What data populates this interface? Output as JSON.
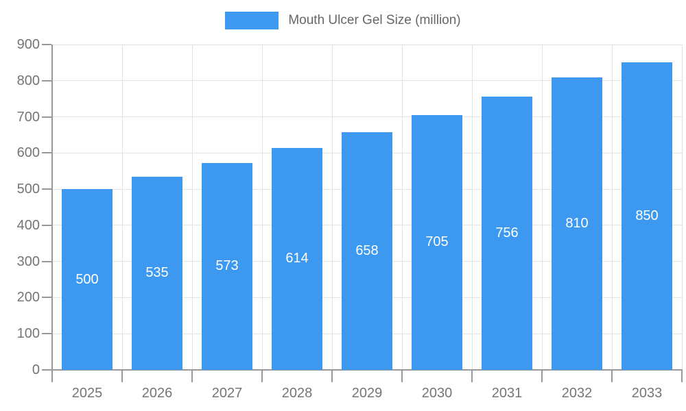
{
  "legend": {
    "label": "Mouth Ulcer Gel Size (million)"
  },
  "chart_data": {
    "type": "bar",
    "title": "",
    "xlabel": "",
    "ylabel": "",
    "categories": [
      "2025",
      "2026",
      "2027",
      "2028",
      "2029",
      "2030",
      "2031",
      "2032",
      "2033"
    ],
    "series": [
      {
        "name": "Mouth Ulcer Gel Size (million)",
        "values": [
          500,
          535,
          573,
          614,
          658,
          705,
          756,
          810,
          850
        ]
      }
    ],
    "ylim": [
      0,
      900
    ],
    "ytick_step": 100,
    "yticks": [
      0,
      100,
      200,
      300,
      400,
      500,
      600,
      700,
      800,
      900
    ],
    "grid": true,
    "legend_position": "top-center",
    "value_labels": "inside-center"
  },
  "style": {
    "bar_color": "#3D99F0",
    "value_label_color": "#FFFFFF",
    "grid_color": "#E3E3E3",
    "axis_color": "#999999",
    "tick_label_color": "#757575",
    "legend_text_color": "#666666",
    "background": "#FFFFFF"
  }
}
